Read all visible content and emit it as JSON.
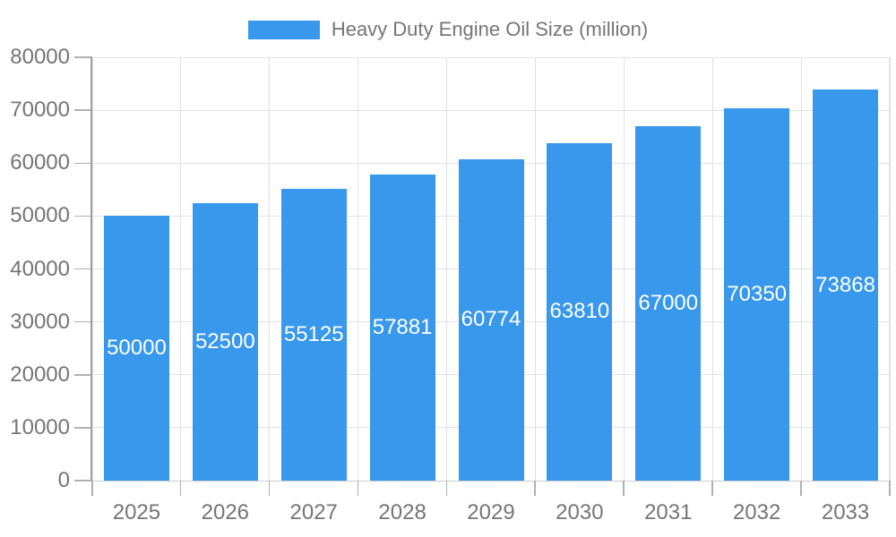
{
  "legend": {
    "label": "Heavy Duty Engine Oil Size (million)"
  },
  "colors": {
    "bar": "#3898EC",
    "axis_text": "#757575",
    "value_label": "#FFFFFF",
    "grid": "#E2E2E2",
    "zero_line": "#CCCCCC",
    "axis_line": "#9E9E9E",
    "tick": "#B0B0B0",
    "background": "#FFFFFF"
  },
  "chart_data": {
    "type": "bar",
    "title": "Heavy Duty Engine Oil Size (million)",
    "categories": [
      "2025",
      "2026",
      "2027",
      "2028",
      "2029",
      "2030",
      "2031",
      "2032",
      "2033"
    ],
    "values": [
      50000,
      52500,
      55125,
      57881,
      60774,
      63810,
      67000,
      70350,
      73868
    ],
    "series_name": "Heavy Duty Engine Oil Size (million)",
    "xlabel": "",
    "ylabel": "",
    "ylim": [
      0,
      80000
    ],
    "ytick_step": 10000,
    "ytick_labels": [
      "0",
      "10000",
      "20000",
      "30000",
      "40000",
      "50000",
      "60000",
      "70000",
      "80000"
    ],
    "grid": true,
    "legend_position": "top",
    "bar_label_position": "inside-center"
  }
}
